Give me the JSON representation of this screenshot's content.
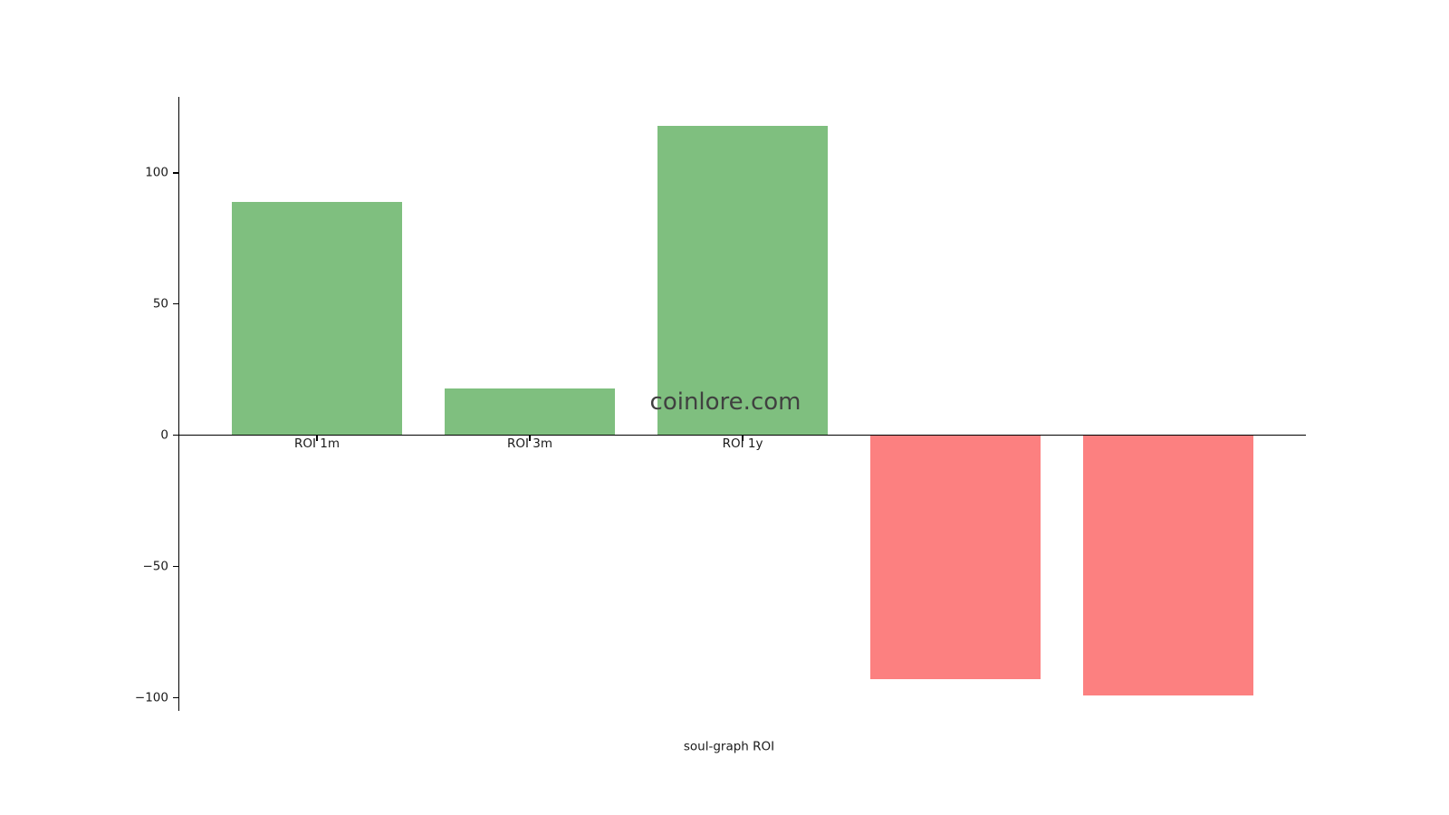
{
  "watermark": {
    "text": "coinlore.com",
    "color": "#404040"
  },
  "colors": {
    "axis": "#000000",
    "tick_text": "#1a1a1a",
    "positive_bar": "#7fbf7f",
    "negative_bar": "#fc8080",
    "background": "#ffffff"
  },
  "chart_data": {
    "type": "bar",
    "title": "",
    "xlabel": "soul-graph ROI",
    "ylabel": "",
    "categories": [
      "ROI 1m",
      "ROI 3m",
      "ROI 1y",
      "",
      ""
    ],
    "values": [
      89,
      18,
      118,
      -93,
      -99
    ],
    "bar_colors": [
      "#7fbf7f",
      "#7fbf7f",
      "#7fbf7f",
      "#fc8080",
      "#fc8080"
    ],
    "yticks": [
      100,
      50,
      0,
      -50,
      -100
    ],
    "ylim": [
      -105,
      129
    ],
    "grid": false,
    "legend": "none",
    "note_hidden_labels": "x tick labels of the two negative bars are obscured by the bars and not visible"
  }
}
